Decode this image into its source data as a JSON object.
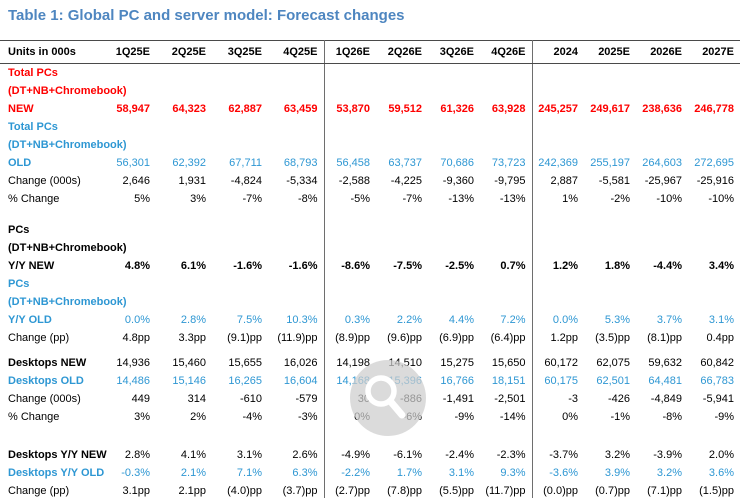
{
  "title": "Table 1: Global PC and server model: Forecast changes",
  "colors": {
    "title_blue": "#4e86c0",
    "forecast_new_red": "#fe0000",
    "forecast_old_blue": "#2e97d3"
  },
  "watermark_icon": "magnifier-icon",
  "table": {
    "unit_label": "Units in 000s",
    "columns": [
      "1Q25E",
      "2Q25E",
      "3Q25E",
      "4Q25E",
      "1Q26E",
      "2Q26E",
      "3Q26E",
      "4Q26E",
      "2024",
      "2025E",
      "2026E",
      "2027E"
    ],
    "group_dividers_after": [
      "4Q25E",
      "4Q26E"
    ],
    "rows": [
      {
        "label_lines": [
          "Total PCs",
          "(DT+NB+Chromebook)",
          "NEW"
        ],
        "style": "red-bold",
        "values": [
          "58,947",
          "64,323",
          "62,887",
          "63,459",
          "53,870",
          "59,512",
          "61,326",
          "63,928",
          "245,257",
          "249,617",
          "238,636",
          "246,778"
        ]
      },
      {
        "label_lines": [
          "Total PCs",
          "(DT+NB+Chromebook)",
          "OLD"
        ],
        "style": "blue",
        "values": [
          "56,301",
          "62,392",
          "67,711",
          "68,793",
          "56,458",
          "63,737",
          "70,686",
          "73,723",
          "242,369",
          "255,197",
          "264,603",
          "272,695"
        ]
      },
      {
        "label_lines": [
          "Change (000s)"
        ],
        "style": "black",
        "values": [
          "2,646",
          "1,931",
          "-4,824",
          "-5,334",
          "-2,588",
          "-4,225",
          "-9,360",
          "-9,795",
          "2,887",
          "-5,581",
          "-25,967",
          "-25,916"
        ]
      },
      {
        "label_lines": [
          "% Change"
        ],
        "style": "black",
        "values": [
          "5%",
          "3%",
          "-7%",
          "-8%",
          "-5%",
          "-7%",
          "-13%",
          "-13%",
          "1%",
          "-2%",
          "-10%",
          "-10%"
        ]
      },
      {
        "spacer": 13
      },
      {
        "label_lines": [
          "PCs",
          "(DT+NB+Chromebook)",
          "Y/Y NEW"
        ],
        "style": "black-bold",
        "values": [
          "4.8%",
          "6.1%",
          "-1.6%",
          "-1.6%",
          "-8.6%",
          "-7.5%",
          "-2.5%",
          "0.7%",
          "1.2%",
          "1.8%",
          "-4.4%",
          "3.4%"
        ]
      },
      {
        "label_lines": [
          "PCs",
          "(DT+NB+Chromebook)",
          "Y/Y OLD"
        ],
        "style": "blue",
        "values": [
          "0.0%",
          "2.8%",
          "7.5%",
          "10.3%",
          "0.3%",
          "2.2%",
          "4.4%",
          "7.2%",
          "0.0%",
          "5.3%",
          "3.7%",
          "3.1%"
        ]
      },
      {
        "label_lines": [
          "Change (pp)"
        ],
        "style": "black",
        "values": [
          "4.8pp",
          "3.3pp",
          "(9.1)pp",
          "(11.9)pp",
          "(8.9)pp",
          "(9.6)pp",
          "(6.9)pp",
          "(6.4)pp",
          "1.2pp",
          "(3.5)pp",
          "(8.1)pp",
          "0.4pp"
        ]
      },
      {
        "spacer": 7
      },
      {
        "label_lines": [
          "Desktops NEW"
        ],
        "style": "black-label-bold",
        "values": [
          "14,936",
          "15,460",
          "15,655",
          "16,026",
          "14,198",
          "14,510",
          "15,275",
          "15,650",
          "60,172",
          "62,075",
          "59,632",
          "60,842"
        ]
      },
      {
        "label_lines": [
          "Desktops OLD"
        ],
        "style": "blue",
        "values": [
          "14,486",
          "15,146",
          "16,265",
          "16,604",
          "14,168",
          "15,396",
          "16,766",
          "18,151",
          "60,175",
          "62,501",
          "64,481",
          "66,783"
        ]
      },
      {
        "label_lines": [
          "Change (000s)"
        ],
        "style": "black",
        "values": [
          "449",
          "314",
          "-610",
          "-579",
          "30",
          "-886",
          "-1,491",
          "-2,501",
          "-3",
          "-426",
          "-4,849",
          "-5,941"
        ]
      },
      {
        "label_lines": [
          "% Change"
        ],
        "style": "black",
        "values": [
          "3%",
          "2%",
          "-4%",
          "-3%",
          "0%",
          "-6%",
          "-9%",
          "-14%",
          "0%",
          "-1%",
          "-8%",
          "-9%"
        ]
      },
      {
        "spacer": 20
      },
      {
        "label_lines": [
          "Desktops Y/Y NEW"
        ],
        "style": "black-label-bold",
        "values": [
          "2.8%",
          "4.1%",
          "3.1%",
          "2.6%",
          "-4.9%",
          "-6.1%",
          "-2.4%",
          "-2.3%",
          "-3.7%",
          "3.2%",
          "-3.9%",
          "2.0%"
        ]
      },
      {
        "label_lines": [
          "Desktops Y/Y OLD"
        ],
        "style": "blue",
        "values": [
          "-0.3%",
          "2.1%",
          "7.1%",
          "6.3%",
          "-2.2%",
          "1.7%",
          "3.1%",
          "9.3%",
          "-3.6%",
          "3.9%",
          "3.2%",
          "3.6%"
        ]
      },
      {
        "label_lines": [
          "Change (pp)"
        ],
        "style": "black",
        "values": [
          "3.1pp",
          "2.1pp",
          "(4.0)pp",
          "(3.7)pp",
          "(2.7)pp",
          "(7.8)pp",
          "(5.5)pp",
          "(11.7)pp",
          "(0.0)pp",
          "(0.7)pp",
          "(7.1)pp",
          "(1.5)pp"
        ]
      }
    ]
  }
}
